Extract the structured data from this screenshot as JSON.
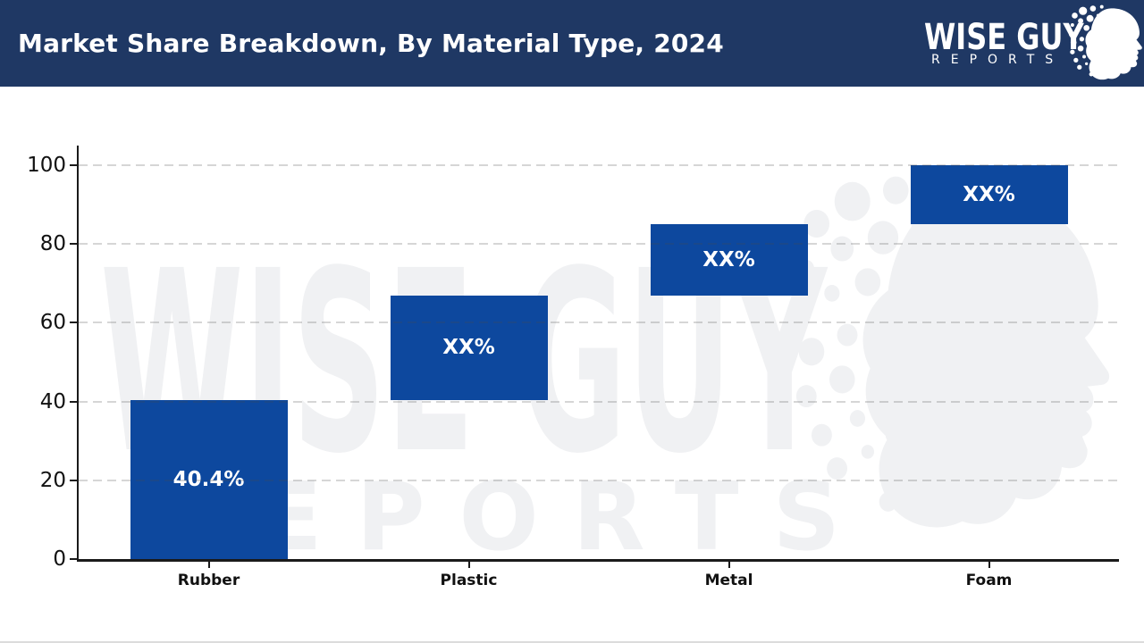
{
  "header": {
    "title": "Market Share Breakdown, By Material Type, 2024",
    "logo": {
      "wordmark": "WISE GUY",
      "wordmark_sub": "REPORTS"
    }
  },
  "watermark": {
    "line1": "WISE GUY",
    "line2": "REPORTS"
  },
  "colors": {
    "header_bg": "#1f3864",
    "bar": "#0d489e",
    "bar_label": "#ffffff",
    "axis": "#1a1a1a",
    "gridline": "#e2e2e2",
    "watermark": "#f0f1f3"
  },
  "chart_data": {
    "type": "bar",
    "subtype": "waterfall",
    "title": "Market Share Breakdown, By Material Type, 2024",
    "categories": [
      "Rubber",
      "Plastic",
      "Metal",
      "Foam"
    ],
    "bars": [
      {
        "category": "Rubber",
        "start": 0,
        "end": 40.4,
        "label": "40.4%"
      },
      {
        "category": "Plastic",
        "start": 40.4,
        "end": 67,
        "label": "XX%"
      },
      {
        "category": "Metal",
        "start": 67,
        "end": 85,
        "label": "XX%"
      },
      {
        "category": "Foam",
        "start": 85,
        "end": 100,
        "label": "XX%"
      }
    ],
    "xlabel": "",
    "ylabel": "",
    "ylim": [
      0,
      100
    ],
    "yticks": [
      0,
      20,
      40,
      60,
      80,
      100
    ],
    "grid": "horizontal-dashed",
    "legend": "none"
  }
}
